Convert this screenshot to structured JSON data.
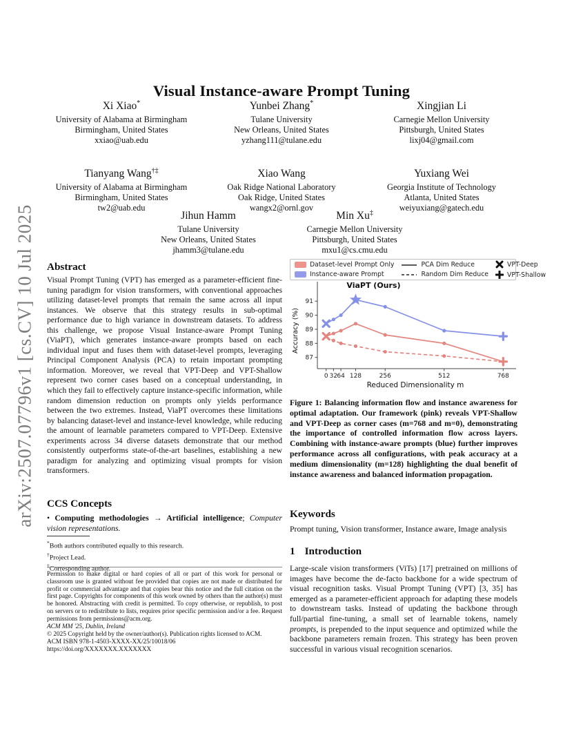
{
  "watermark": "arXiv:2507.07796v1  [cs.CV]  10 Jul 2025",
  "title": "Visual Instance-aware Prompt Tuning",
  "authors": [
    {
      "name": "Xi Xiao",
      "sup": "*",
      "affil1": "University of Alabama at Birmingham",
      "affil2": "Birmingham, United States",
      "email": "xxiao@uab.edu"
    },
    {
      "name": "Yunbei Zhang",
      "sup": "*",
      "affil1": "Tulane University",
      "affil2": "New Orleans, United States",
      "email": "yzhang111@tulane.edu"
    },
    {
      "name": "Xingjian Li",
      "sup": "",
      "affil1": "Carnegie Mellon University",
      "affil2": "Pittsburgh, United States",
      "email": "lixj04@gmail.com"
    },
    {
      "name": "Tianyang Wang",
      "sup": "†‡",
      "affil1": "University of Alabama at Birmingham",
      "affil2": "Birmingham, United States",
      "email": "tw2@uab.edu"
    },
    {
      "name": "Xiao Wang",
      "sup": "",
      "affil1": "Oak Ridge National Laboratory",
      "affil2": "Oak Ridge, United States",
      "email": "wangx2@ornl.gov"
    },
    {
      "name": "Yuxiang Wei",
      "sup": "",
      "affil1": "Georgia Institute of Technology",
      "affil2": "Atlanta, United States",
      "email": "weiyuxiang@gatech.edu"
    },
    {
      "name": "Jihun Hamm",
      "sup": "",
      "affil1": "Tulane University",
      "affil2": "New Orleans, United States",
      "email": "jhamm3@tulane.edu"
    },
    {
      "name": "Min Xu",
      "sup": "‡",
      "affil1": "Carnegie Mellon University",
      "affil2": "Pittsburgh, United States",
      "email": "mxu1@cs.cmu.edu"
    }
  ],
  "abstract": {
    "heading": "Abstract",
    "text": "Visual Prompt Tuning (VPT) has emerged as a parameter-efficient fine-tuning paradigm for vision transformers, with conventional approaches utilizing dataset-level prompts that remain the same across all input instances. We observe that this strategy results in sub-optimal performance due to high variance in downstream datasets. To address this challenge, we propose Visual Instance-aware Prompt Tuning (ViaPT), which generates instance-aware prompts based on each individual input and fuses them with dataset-level prompts, leveraging Principal Component Analysis (PCA) to retain important prompting information. Moreover, we reveal that VPT-Deep and VPT-Shallow represent two corner cases based on a conceptual understanding, in which they fail to effectively capture instance-specific information, while random dimension reduction on prompts only yields performance between the two extremes. Instead, ViaPT overcomes these limitations by balancing dataset-level and instance-level knowledge, while reducing the amount of learnable parameters compared to VPT-Deep. Extensive experiments across 34 diverse datasets demonstrate that our method consistently outperforms state-of-the-art baselines, establishing a new paradigm for analyzing and optimizing visual prompts for vision transformers."
  },
  "ccs": {
    "heading": "CCS Concepts",
    "bullet": "• ",
    "bold": "Computing methodologies → Artificial intelligence",
    "sep": "; ",
    "italic": "Computer vision representations."
  },
  "footnotes": [
    {
      "sup": "*",
      "text": "Both authors contributed equally to this research."
    },
    {
      "sup": "†",
      "text": "Project Lead."
    },
    {
      "sup": "‡",
      "text": "Corresponding author."
    }
  ],
  "permission": {
    "text": "Permission to make digital or hard copies of all or part of this work for personal or classroom use is granted without fee provided that copies are not made or distributed for profit or commercial advantage and that copies bear this notice and the full citation on the first page. Copyrights for components of this work owned by others than the author(s) must be honored. Abstracting with credit is permitted. To copy otherwise, or republish, to post on servers or to redistribute to lists, requires prior specific permission and/or a fee. Request permissions from permissions@acm.org.",
    "venue": "ACM MM '25, Dublin, Ireland",
    "copyright": "© 2025 Copyright held by the owner/author(s). Publication rights licensed to ACM.",
    "isbn": "ACM ISBN 978-1-4503-XXXX-XX/25/10018/06",
    "doi": "https://doi.org/XXXXXXX.XXXXXXX"
  },
  "figure": {
    "caption_label": "Figure 1: ",
    "caption_text": "Balancing information flow and instance awareness for optimal adaptation. Our framework (pink) reveals VPT-Shallow and VPT-Deep as corner cases (m=768 and m=0), demonstrating the importance of controlled information flow across layers. Combining with instance-aware prompts (blue) further improves performance across all configurations, with peak accuracy at a medium dimensionality (m=128) highlighting the dual benefit of instance awareness and balanced information propagation."
  },
  "legend": {
    "patches": [
      {
        "color": "#ee938d",
        "label": "Dataset-level Prompt Only"
      },
      {
        "color": "#939ceb",
        "label": "Instance-aware Prompt"
      }
    ],
    "lines": [
      {
        "style": "solid",
        "label": "PCA Dim Reduce"
      },
      {
        "style": "dashed",
        "label": "Random Dim Reduce"
      }
    ],
    "markers": [
      {
        "glyph": "x",
        "label": "VPT-Deep"
      },
      {
        "glyph": "plus",
        "label": "VPT-Shallow"
      }
    ]
  },
  "keywords": {
    "heading": "Keywords",
    "text": "Prompt tuning, Vision transformer, Instance aware, Image analysis"
  },
  "introduction": {
    "number": "1",
    "heading": "Introduction",
    "p_before_italic": "Large-scale vision transformers (ViTs) [17] pretrained on millions of images have become the de-facto backbone for a wide spectrum of visual recognition tasks. Visual Prompt Tuning (VPT) [3, 35] has emerged as a parameter-efficient approach for adapting these models to downstream tasks. Instead of updating the backbone through full/partial fine-tuning, a small set of learnable tokens, namely ",
    "p_italic": "prompts",
    "p_after_italic": ", is prepended to the input sequence and optimized while the backbone parameters remain frozen. This strategy has been proven successful in various visual recognition scenarios."
  },
  "chart_data": {
    "type": "line",
    "annotation": "ViaPT (Ours)",
    "xlabel": "Reduced Dimensionality m",
    "ylabel": "Accuracy (%)",
    "x_ticks": [
      0,
      32,
      64,
      128,
      256,
      512,
      768
    ],
    "y_ticks": [
      87,
      88,
      89,
      90,
      91
    ],
    "xlim": [
      -38,
      812
    ],
    "ylim": [
      86.2,
      91.6
    ],
    "grid": false,
    "legend_position": "top",
    "series": [
      {
        "name": "Instance-aware Prompt + PCA Dim Reduce",
        "color": "#8590e8",
        "dash": "solid",
        "x": [
          0,
          32,
          64,
          128,
          256,
          512,
          768
        ],
        "y": [
          89.4,
          89.7,
          90.0,
          91.1,
          90.6,
          88.9,
          88.5
        ],
        "markers": [
          "x",
          "dot",
          "dot",
          "star",
          "dot",
          "dot",
          "plus"
        ]
      },
      {
        "name": "Dataset-level Prompt Only + PCA Dim Reduce",
        "color": "#e5857f",
        "dash": "solid",
        "x": [
          0,
          32,
          64,
          128,
          256,
          512,
          768
        ],
        "y": [
          88.5,
          88.7,
          88.9,
          89.4,
          88.6,
          88.0,
          86.7
        ],
        "markers": [
          "x",
          "dot",
          "dot",
          "dot",
          "dot",
          "dot",
          "plus"
        ]
      },
      {
        "name": "Dataset-level Prompt Only + Random Dim Reduce",
        "color": "#e5857f",
        "dash": "dashed",
        "x": [
          0,
          32,
          64,
          128,
          256,
          512,
          768
        ],
        "y": [
          88.45,
          88.2,
          88.0,
          87.8,
          87.4,
          87.1,
          86.7
        ],
        "markers": [
          "none",
          "dot",
          "dot",
          "dot",
          "dot",
          "dot",
          "none"
        ]
      }
    ]
  }
}
